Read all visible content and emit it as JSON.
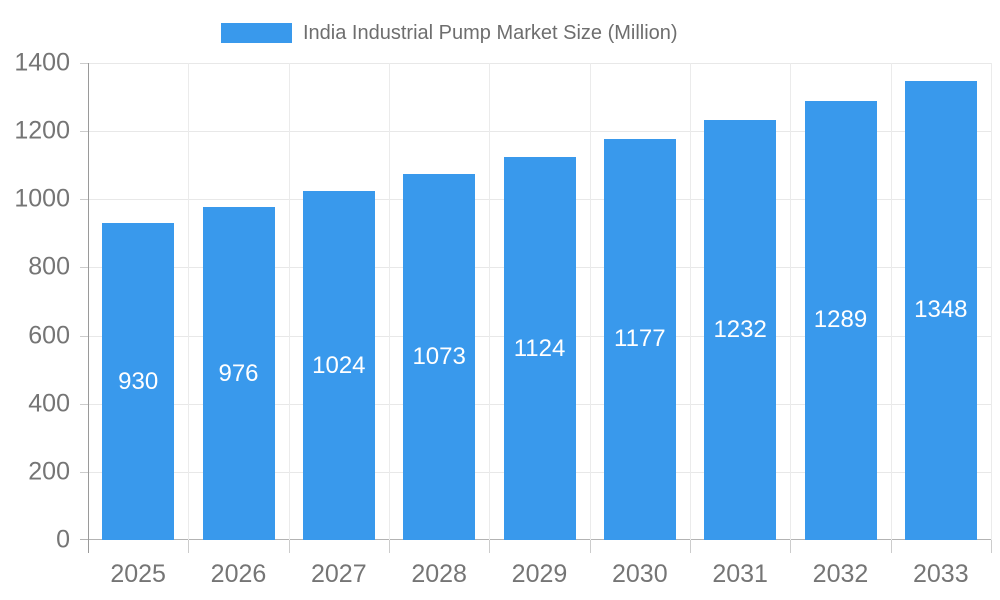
{
  "legend": {
    "label": "India Industrial Pump Market Size (Million)",
    "position": "top"
  },
  "colors": {
    "bar": "#3999ec",
    "legend_text": "#6e6e6e",
    "axis_text": "#757575",
    "annotation_text": "#ffffff",
    "grid_horizontal": "#e8e8e8",
    "grid_vertical": "#ebebeb",
    "baseline": "#b3b3b3",
    "axis_line": "#9a9a9a",
    "tick": "#cccccc",
    "background": "#ffffff"
  },
  "chart_data": {
    "type": "bar",
    "title": "India Industrial Pump Market Size (Million)",
    "categories": [
      "2025",
      "2026",
      "2027",
      "2028",
      "2029",
      "2030",
      "2031",
      "2032",
      "2033"
    ],
    "values": [
      930,
      976,
      1024,
      1073,
      1124,
      1177,
      1232,
      1289,
      1348
    ],
    "series": [
      {
        "name": "India Industrial Pump Market Size (Million)",
        "values": [
          930,
          976,
          1024,
          1073,
          1124,
          1177,
          1232,
          1289,
          1348
        ]
      }
    ],
    "xlabel": "",
    "ylabel": "",
    "ylim": [
      0,
      1400
    ],
    "yticks": [
      0,
      200,
      400,
      600,
      800,
      1000,
      1200,
      1400
    ],
    "grid": true,
    "legend_position": "top",
    "value_labels": "inside-bars-white"
  }
}
